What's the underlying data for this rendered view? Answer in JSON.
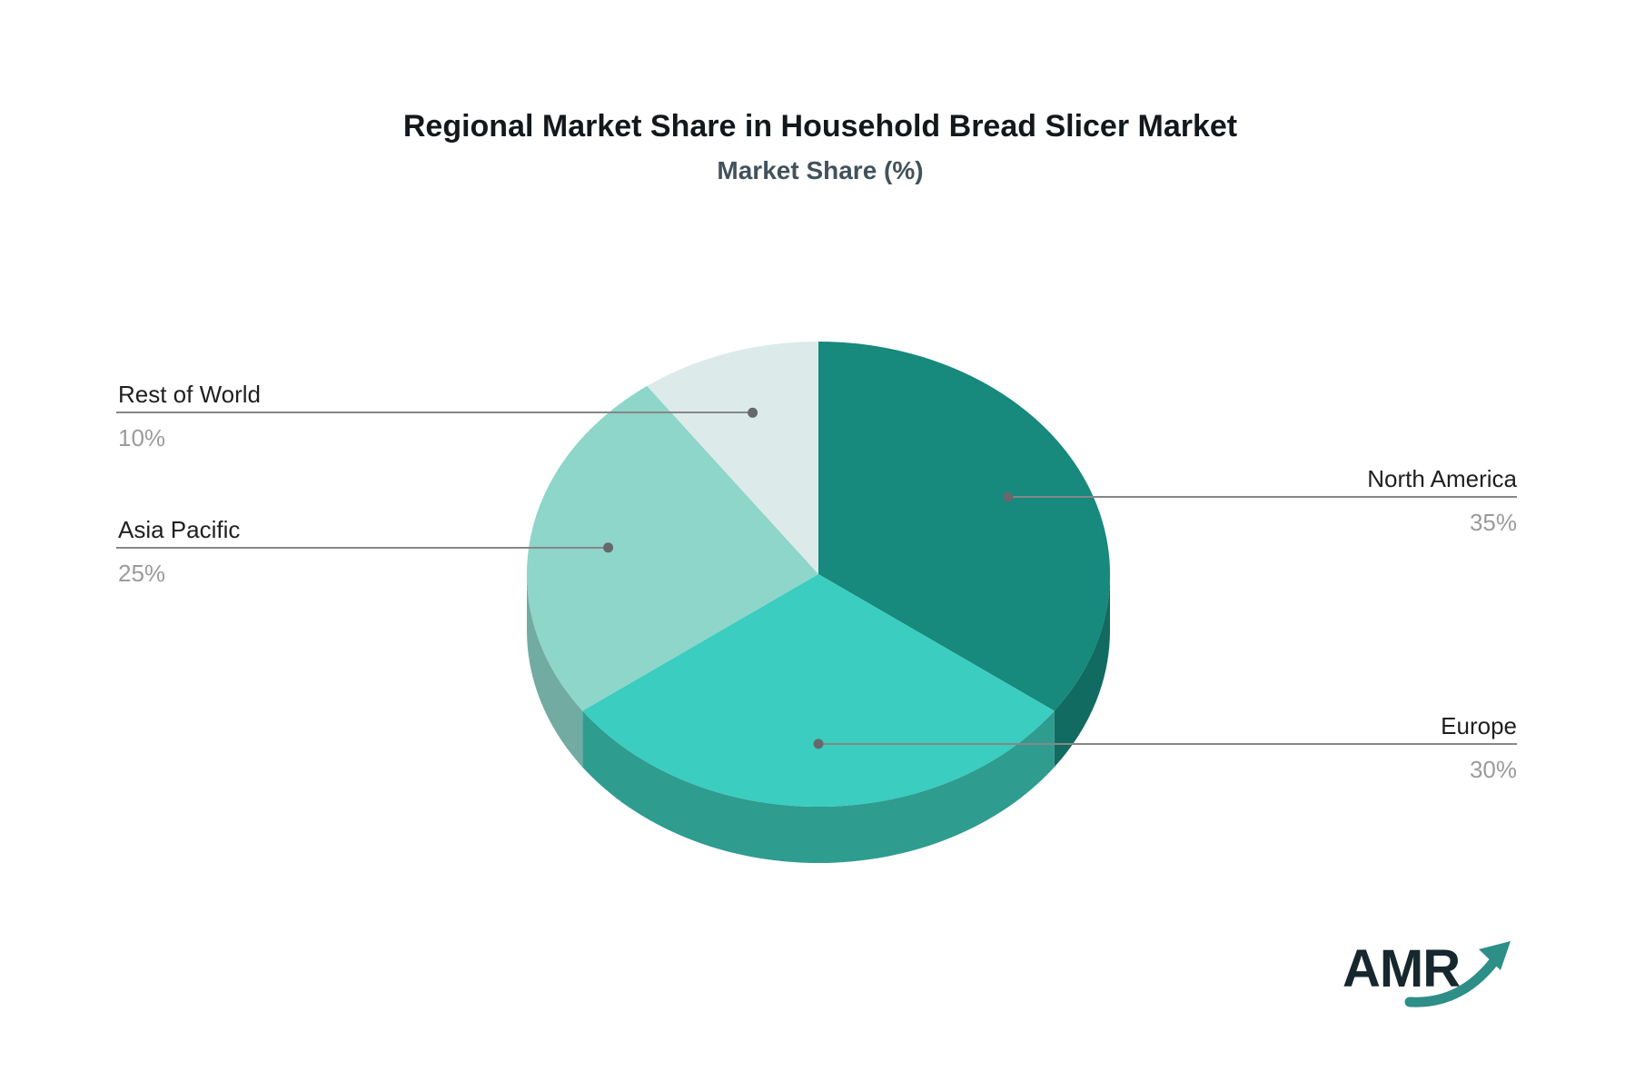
{
  "page": {
    "background": "#ffffff"
  },
  "header": {
    "title": "Regional Market Share in Household Bread Slicer Market",
    "subtitle": "Market Share (%)"
  },
  "chart_data": {
    "type": "pie",
    "title": "Regional Market Share in Household Bread Slicer Market",
    "subtitle": "Market Share (%)",
    "unit": "%",
    "pseudo_3d": true,
    "order": "clockwise from 12 o'clock",
    "slices": [
      {
        "label": "North America",
        "value": 35,
        "color": "#17897d",
        "side_color": "#126b61"
      },
      {
        "label": "Europe",
        "value": 30,
        "color": "#3bcdbf",
        "side_color": "#2f9c90"
      },
      {
        "label": "Asia Pacific",
        "value": 25,
        "color": "#8ed5ca",
        "side_color": "#72aba2"
      },
      {
        "label": "Rest of World",
        "value": 10,
        "color": "#dcebe9"
      }
    ],
    "label_color": "#1f1f1f",
    "value_color": "#9b9b9b",
    "leader_line_color": "#878787",
    "dot_color": "#66696b",
    "legend": "none"
  },
  "logo": {
    "text": "AMR",
    "color": "#16282e",
    "arrow_color": "#2e8e88"
  }
}
